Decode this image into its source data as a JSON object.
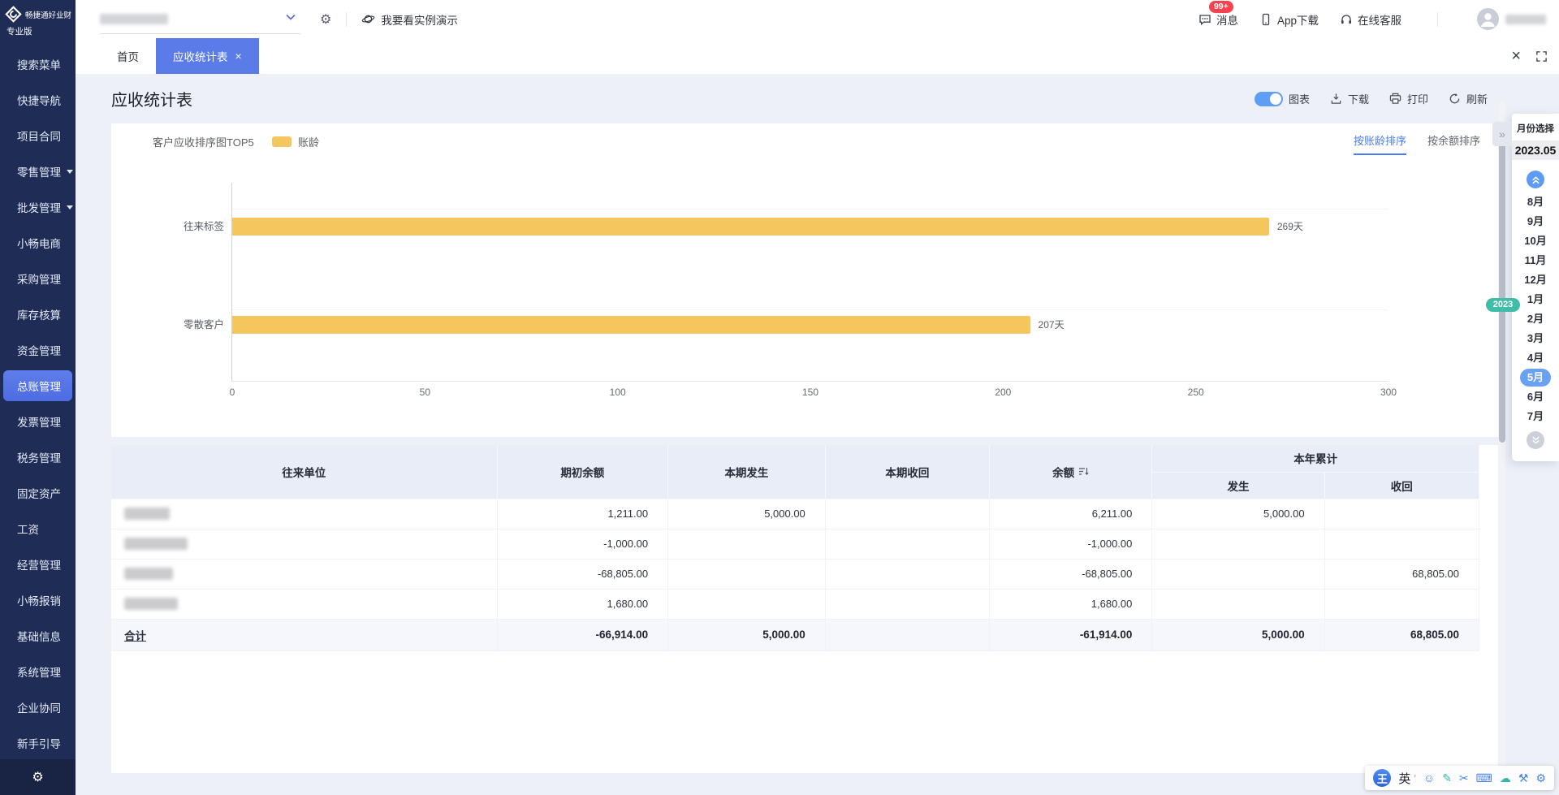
{
  "colors": {
    "accent": "#5b7ce8",
    "bar": "#f3c75e",
    "badge_red": "#f5434f",
    "month_active": "#69a1f3",
    "year_badge": "#3fbda6",
    "sidebar_bg": "#1f2c55"
  },
  "brand": {
    "name": "畅捷通好业财",
    "edition": "专业版"
  },
  "topbar": {
    "demo": "我要看实例演示",
    "messages": "消息",
    "messages_badge": "99+",
    "app_download": "App下载",
    "support": "在线客服"
  },
  "tabs": [
    {
      "label": "首页",
      "active": false
    },
    {
      "label": "应收统计表",
      "active": true,
      "closable": true
    }
  ],
  "sidebar": {
    "items": [
      {
        "label": "搜索菜单"
      },
      {
        "label": "快捷导航"
      },
      {
        "label": "项目合同"
      },
      {
        "label": "零售管理",
        "caret": true
      },
      {
        "label": "批发管理",
        "caret": true
      },
      {
        "label": "小畅电商"
      },
      {
        "label": "采购管理"
      },
      {
        "label": "库存核算"
      },
      {
        "label": "资金管理"
      },
      {
        "label": "总账管理",
        "active": true
      },
      {
        "label": "发票管理"
      },
      {
        "label": "税务管理"
      },
      {
        "label": "固定资产"
      },
      {
        "label": "工资"
      },
      {
        "label": "经营管理"
      },
      {
        "label": "小畅报销"
      },
      {
        "label": "基础信息"
      },
      {
        "label": "系统管理"
      },
      {
        "label": "企业协同"
      },
      {
        "label": "新手引导"
      }
    ]
  },
  "page": {
    "title": "应收统计表"
  },
  "toolbar": {
    "chart_toggle": "图表",
    "download": "下载",
    "print": "打印",
    "refresh": "刷新"
  },
  "chart": {
    "header": "客户应收排序图TOP5",
    "legend": "账龄",
    "sort_tabs": [
      {
        "label": "按账龄排序",
        "active": true
      },
      {
        "label": "按余额排序",
        "active": false
      }
    ]
  },
  "chart_data": {
    "type": "bar",
    "orientation": "horizontal",
    "title": "客户应收排序图TOP5",
    "categories": [
      "往来标签",
      "零散客户"
    ],
    "series": [
      {
        "name": "账龄",
        "values": [
          269,
          207
        ]
      }
    ],
    "unit": "天",
    "value_labels": [
      "269天",
      "207天"
    ],
    "xlim": [
      0,
      300
    ],
    "xticks": [
      "0",
      "50",
      "100",
      "150",
      "200",
      "250",
      "300"
    ],
    "bar_color": "#f3c75e",
    "grid": true,
    "legend_position": "top"
  },
  "table": {
    "columns": [
      "往来单位",
      "期初余额",
      "本期发生",
      "本期收回",
      "余额"
    ],
    "group": {
      "label": "本年累计",
      "children": [
        "发生",
        "收回"
      ]
    },
    "rows": [
      {
        "name_redacted": true,
        "blur_width": 56,
        "values": [
          "1,211.00",
          "5,000.00",
          "",
          "6,211.00",
          "5,000.00",
          ""
        ]
      },
      {
        "name_redacted": true,
        "blur_width": 78,
        "values": [
          "-1,000.00",
          "",
          "",
          "-1,000.00",
          "",
          ""
        ]
      },
      {
        "name_redacted": true,
        "blur_width": 60,
        "values": [
          "-68,805.00",
          "",
          "",
          "-68,805.00",
          "",
          "68,805.00"
        ]
      },
      {
        "name_redacted": true,
        "blur_width": 66,
        "values": [
          "1,680.00",
          "",
          "",
          "1,680.00",
          "",
          ""
        ]
      }
    ],
    "total": {
      "label": "合计",
      "values": [
        "-66,914.00",
        "5,000.00",
        "",
        "-61,914.00",
        "5,000.00",
        "68,805.00"
      ]
    }
  },
  "month_panel": {
    "title": "月份选择",
    "current": "2023.05",
    "year_badge": "2023",
    "months": [
      "8月",
      "9月",
      "10月",
      "11月",
      "12月",
      "1月",
      "2月",
      "3月",
      "4月",
      "5月",
      "6月",
      "7月"
    ],
    "active_month": "5月"
  },
  "ime": {
    "logo": "王",
    "mode": "英",
    "quote": "'"
  },
  "icons": {
    "collapse": "»",
    "gear": "⚙",
    "emoji": "☺",
    "pen": "✎",
    "scissors": "✂",
    "keyboard": "⌨",
    "cloud": "☁",
    "toolbox": "⚒",
    "settings": "⚙",
    "tab_close": "×",
    "win_close": "×"
  }
}
